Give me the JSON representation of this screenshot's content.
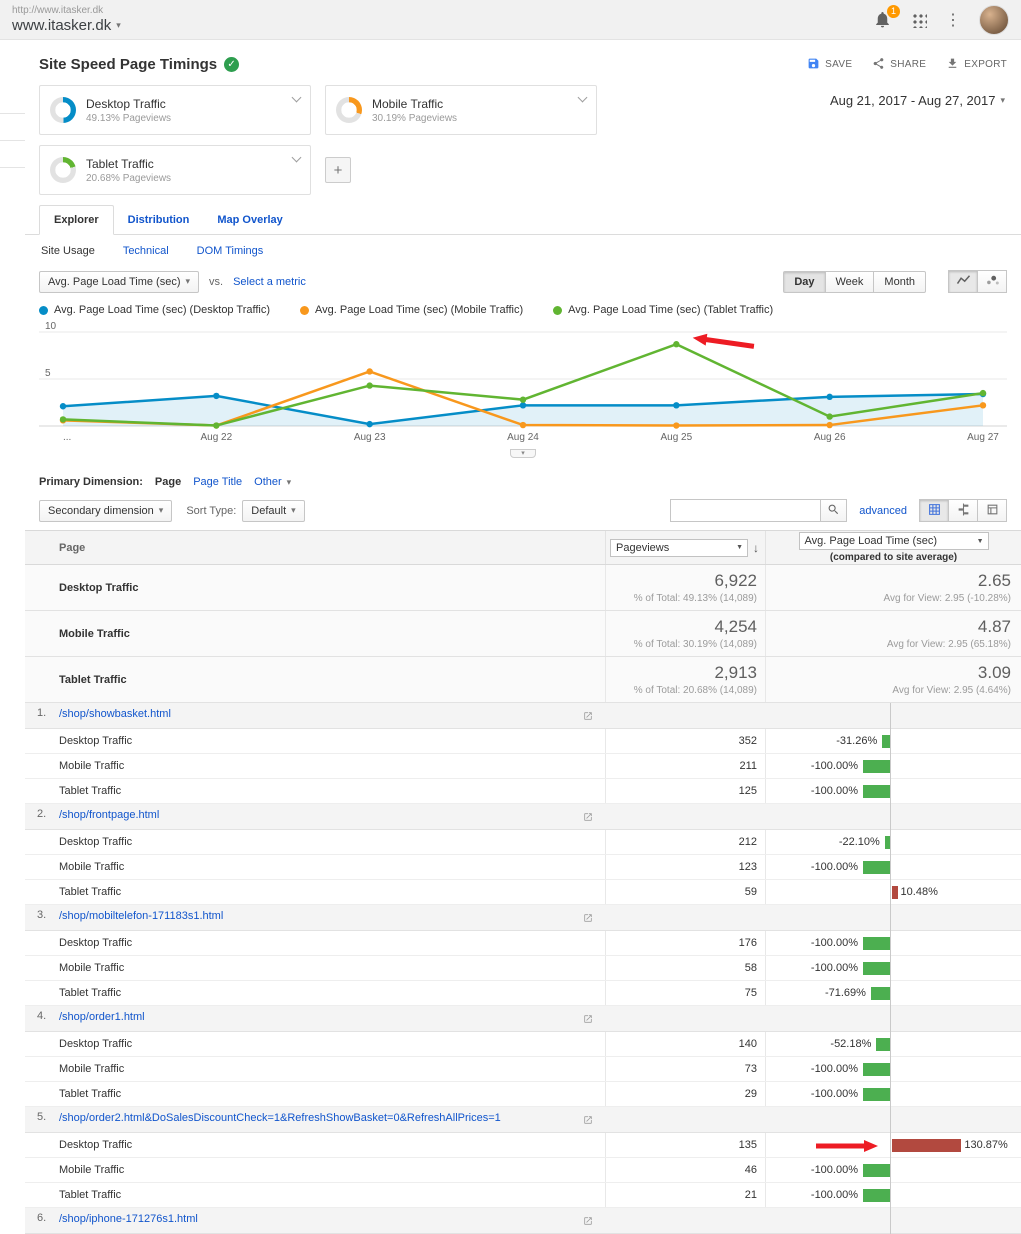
{
  "colors": {
    "desktop": "#058dc7",
    "mobile": "#f8981d",
    "tablet": "#61b532",
    "negative_bar": "#4caf50",
    "positive_bar": "#b2493f",
    "annotation_arrow": "#ed1c24",
    "link_blue": "#1155cc",
    "badge_orange": "#ff9900"
  },
  "topbar": {
    "url": "http://www.itasker.dk",
    "account_name": "www.itasker.dk",
    "notification_count": "1"
  },
  "report": {
    "title": "Site Speed Page Timings",
    "save_label": "SAVE",
    "share_label": "SHARE",
    "export_label": "EXPORT",
    "date_range": "Aug 21, 2017 - Aug 27, 2017"
  },
  "segments": [
    {
      "name": "Desktop Traffic",
      "detail": "49.13% Pageviews",
      "percent": 49.13,
      "color": "#058dc7"
    },
    {
      "name": "Mobile Traffic",
      "detail": "30.19% Pageviews",
      "percent": 30.19,
      "color": "#f8981d"
    },
    {
      "name": "Tablet Traffic",
      "detail": "20.68% Pageviews",
      "percent": 20.68,
      "color": "#61b532"
    }
  ],
  "tabs": {
    "explorer": "Explorer",
    "distribution": "Distribution",
    "map_overlay": "Map Overlay"
  },
  "subtabs": {
    "site_usage": "Site Usage",
    "technical": "Technical",
    "dom_timings": "DOM Timings"
  },
  "metric_bar": {
    "metric_dropdown": "Avg. Page Load Time (sec)",
    "vs_label": "vs.",
    "select_metric": "Select a metric",
    "granularity": {
      "day": "Day",
      "week": "Week",
      "month": "Month"
    }
  },
  "chart_data": {
    "type": "line",
    "title": "Avg. Page Load Time (sec) by day",
    "x": [
      "...",
      "Aug 22",
      "Aug 23",
      "Aug 24",
      "Aug 25",
      "Aug 26",
      "Aug 27"
    ],
    "ylim": [
      0,
      10
    ],
    "yticks": [
      5,
      10
    ],
    "grid": true,
    "legend_position": "top",
    "series": [
      {
        "name": "Avg. Page Load Time (sec) (Desktop Traffic)",
        "color": "#058dc7",
        "area": true,
        "values": [
          2.1,
          3.2,
          0.2,
          2.2,
          2.2,
          3.1,
          3.4
        ]
      },
      {
        "name": "Avg. Page Load Time (sec) (Mobile Traffic)",
        "color": "#f8981d",
        "values": [
          0.6,
          0.05,
          5.8,
          0.1,
          0.05,
          0.1,
          2.2
        ]
      },
      {
        "name": "Avg. Page Load Time (sec) (Tablet Traffic)",
        "color": "#61b532",
        "values": [
          0.7,
          0.05,
          4.3,
          2.8,
          8.7,
          1.0,
          3.5
        ]
      }
    ],
    "annotations": [
      {
        "type": "arrow",
        "target": "Tablet Traffic peak on Aug 25"
      },
      {
        "type": "arrow",
        "target": "130.87% bar in row 5 Desktop Traffic"
      }
    ]
  },
  "dimension_bar": {
    "label": "Primary Dimension:",
    "page": "Page",
    "page_title": "Page Title",
    "other": "Other"
  },
  "toolbar": {
    "secondary_dimension": "Secondary dimension",
    "sort_type_label": "Sort Type:",
    "sort_type_value": "Default",
    "search_value": "",
    "advanced_label": "advanced"
  },
  "table": {
    "columns": {
      "page": "Page",
      "pageviews": "Pageviews",
      "metric": "Avg. Page Load Time (sec)",
      "metric_note": "(compared to site average)"
    },
    "summary_rows": [
      {
        "label": "Desktop Traffic",
        "pageviews": "6,922",
        "pageviews_sub": "% of Total: 49.13% (14,089)",
        "metric": "2.65",
        "metric_sub": "Avg for View: 2.95 (-10.28%)"
      },
      {
        "label": "Mobile Traffic",
        "pageviews": "4,254",
        "pageviews_sub": "% of Total: 30.19% (14,089)",
        "metric": "4.87",
        "metric_sub": "Avg for View: 2.95 (65.18%)"
      },
      {
        "label": "Tablet Traffic",
        "pageviews": "2,913",
        "pageviews_sub": "% of Total: 20.68% (14,089)",
        "metric": "3.09",
        "metric_sub": "Avg for View: 2.95 (4.64%)"
      }
    ],
    "groups": [
      {
        "index": "1.",
        "page": "/shop/showbasket.html",
        "entries": [
          {
            "label": "Desktop Traffic",
            "pageviews": "352",
            "delta_pct": -31.26,
            "delta_label": "-31.26%"
          },
          {
            "label": "Mobile Traffic",
            "pageviews": "211",
            "delta_pct": -100,
            "delta_label": "-100.00%"
          },
          {
            "label": "Tablet Traffic",
            "pageviews": "125",
            "delta_pct": -100,
            "delta_label": "-100.00%"
          }
        ]
      },
      {
        "index": "2.",
        "page": "/shop/frontpage.html",
        "entries": [
          {
            "label": "Desktop Traffic",
            "pageviews": "212",
            "delta_pct": -22.1,
            "delta_label": "-22.10%"
          },
          {
            "label": "Mobile Traffic",
            "pageviews": "123",
            "delta_pct": -100,
            "delta_label": "-100.00%"
          },
          {
            "label": "Tablet Traffic",
            "pageviews": "59",
            "delta_pct": 10.48,
            "delta_label": "10.48%"
          }
        ]
      },
      {
        "index": "3.",
        "page": "/shop/mobiltelefon-171183s1.html",
        "entries": [
          {
            "label": "Desktop Traffic",
            "pageviews": "176",
            "delta_pct": -100,
            "delta_label": "-100.00%"
          },
          {
            "label": "Mobile Traffic",
            "pageviews": "58",
            "delta_pct": -100,
            "delta_label": "-100.00%"
          },
          {
            "label": "Tablet Traffic",
            "pageviews": "75",
            "delta_pct": -71.69,
            "delta_label": "-71.69%"
          }
        ]
      },
      {
        "index": "4.",
        "page": "/shop/order1.html",
        "entries": [
          {
            "label": "Desktop Traffic",
            "pageviews": "140",
            "delta_pct": -52.18,
            "delta_label": "-52.18%"
          },
          {
            "label": "Mobile Traffic",
            "pageviews": "73",
            "delta_pct": -100,
            "delta_label": "-100.00%"
          },
          {
            "label": "Tablet Traffic",
            "pageviews": "29",
            "delta_pct": -100,
            "delta_label": "-100.00%"
          }
        ]
      },
      {
        "index": "5.",
        "page": "/shop/order2.html&DoSalesDiscountCheck=1&RefreshShowBasket=0&RefreshAllPrices=1",
        "entries": [
          {
            "label": "Desktop Traffic",
            "pageviews": "135",
            "delta_pct": 130.87,
            "delta_label": "130.87%",
            "arrow": true
          },
          {
            "label": "Mobile Traffic",
            "pageviews": "46",
            "delta_pct": -100,
            "delta_label": "-100.00%"
          },
          {
            "label": "Tablet Traffic",
            "pageviews": "21",
            "delta_pct": -100,
            "delta_label": "-100.00%"
          }
        ]
      },
      {
        "index": "6.",
        "page": "/shop/iphone-171276s1.html",
        "entries": []
      }
    ]
  },
  "icons": {
    "caret_down": "▾",
    "select_arrow": "▼",
    "sort_desc": "↓",
    "overflow_menu": "⋮",
    "verified_check": "✓",
    "add_segment": "+",
    "handle_caret": "▾"
  }
}
